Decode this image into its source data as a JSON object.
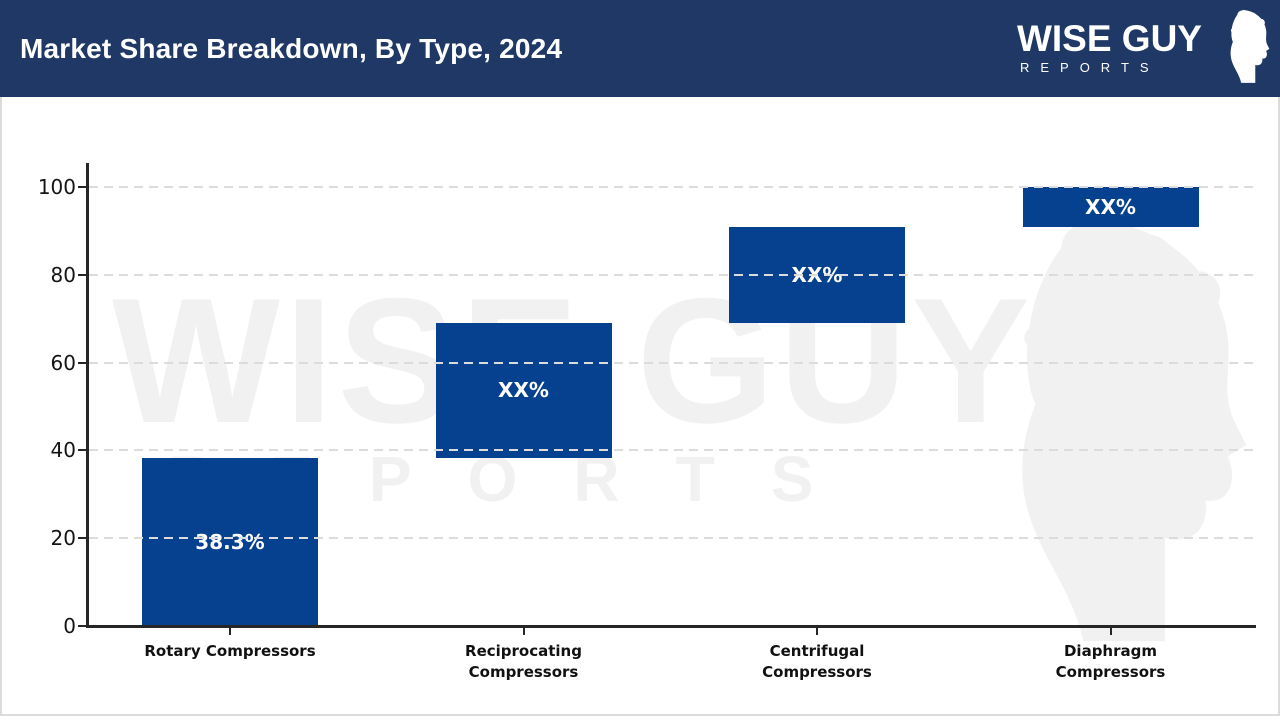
{
  "header": {
    "title": "Market Share Breakdown, By Type, 2024",
    "logo": {
      "name_line": "WISE GUY",
      "sub_line": "REPORTS",
      "face_icon": "dotted-face-profile"
    },
    "colors": {
      "header_bg": "#1f3866",
      "title_text": "#ffffff"
    }
  },
  "watermark": {
    "line1": "WISE GUY",
    "line2": "REPORTS",
    "color": "#f1f1f1"
  },
  "chart_data": {
    "type": "bar",
    "subtype": "floating-waterfall",
    "title": "Market Share Breakdown, By Type, 2024",
    "categories": [
      "Rotary Compressors",
      "Reciprocating Compressors",
      "Centrifugal Compressors",
      "Diaphragm Compressors"
    ],
    "bars": [
      {
        "category": "Rotary Compressors",
        "label_lines": [
          "Rotary Compressors"
        ],
        "start": 0,
        "end": 38.3,
        "value_label": "38.3%"
      },
      {
        "category": "Reciprocating Compressors",
        "label_lines": [
          "Reciprocating",
          "Compressors"
        ],
        "start": 38.3,
        "end": 69,
        "value_label": "XX%"
      },
      {
        "category": "Centrifugal Compressors",
        "label_lines": [
          "Centrifugal",
          "Compressors"
        ],
        "start": 69,
        "end": 91,
        "value_label": "XX%"
      },
      {
        "category": "Diaphragm Compressors",
        "label_lines": [
          "Diaphragm",
          "Compressors"
        ],
        "start": 91,
        "end": 100,
        "value_label": "XX%"
      }
    ],
    "yticks": [
      0,
      20,
      40,
      60,
      80,
      100
    ],
    "ylim": [
      0,
      105
    ],
    "xlabel": "",
    "ylabel": "",
    "grid": true,
    "grid_style": "dashed",
    "legend": null,
    "bar_color": "#05418f",
    "value_label_color": "#ffffff",
    "axis_color": "#262626"
  }
}
